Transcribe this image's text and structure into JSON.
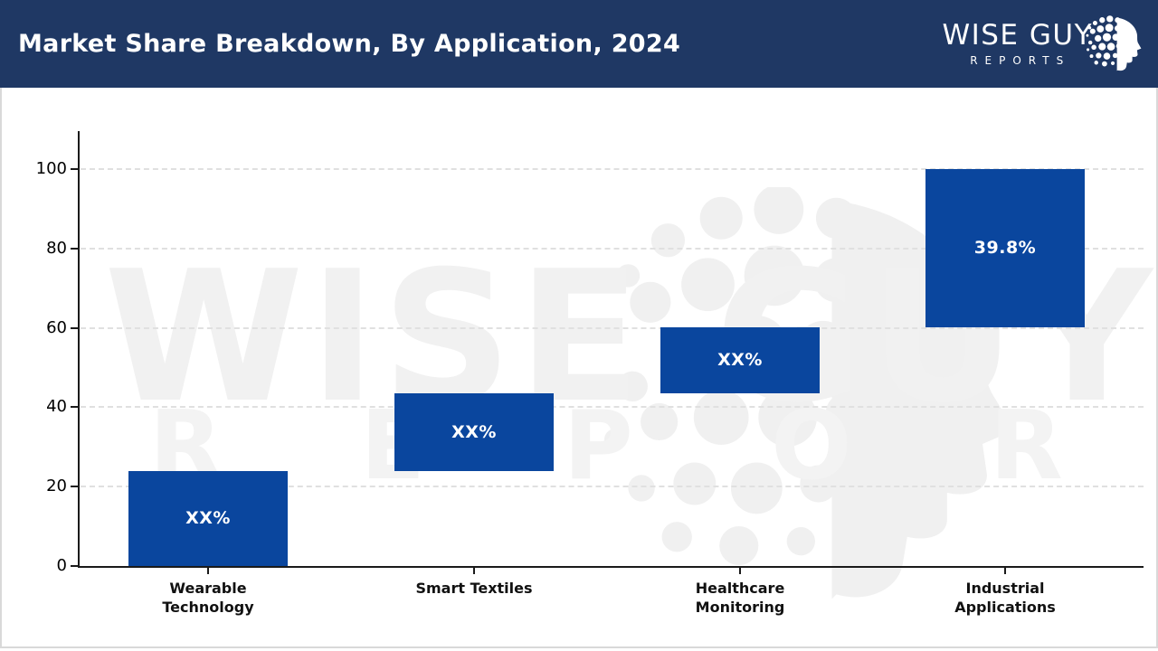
{
  "header": {
    "title": "Market Share Breakdown, By Application, 2024",
    "logo": {
      "line1": "WISE GUY",
      "line2": "REPORTS"
    }
  },
  "watermark": {
    "line1": "WISE GUY",
    "line2": "R E P O R T S"
  },
  "colors": {
    "header_bg": "#1f3864",
    "header_text": "#ffffff",
    "bar": "#0a469e",
    "bar_label": "#ffffff",
    "gridline": "#e0e0e0",
    "axis": "#1a1a1a",
    "tick_text": "#000000",
    "category_text": "#111111",
    "watermark": "#f1f1f1",
    "frame_border": "#d9d9d9"
  },
  "chart_data": {
    "type": "bar",
    "subtype": "waterfall",
    "title": "Market Share Breakdown, By Application, 2024",
    "categories": [
      "Wearable Technology",
      "Smart Textiles",
      "Healthcare Monitoring",
      "Industrial Applications"
    ],
    "categories_lines": [
      [
        "Wearable",
        "Technology"
      ],
      [
        "Smart Textiles"
      ],
      [
        "Healthcare",
        "Monitoring"
      ],
      [
        "Industrial",
        "Applications"
      ]
    ],
    "segments": [
      {
        "category": "Wearable Technology",
        "start": 0,
        "end": 24,
        "label": "XX%"
      },
      {
        "category": "Smart Textiles",
        "start": 24,
        "end": 43.5,
        "label": "XX%"
      },
      {
        "category": "Healthcare Monitoring",
        "start": 43.5,
        "end": 60.2,
        "label": "XX%"
      },
      {
        "category": "Industrial Applications",
        "start": 60.2,
        "end": 100,
        "label": "39.8%"
      }
    ],
    "values_estimated": [
      24,
      19.5,
      16.7,
      39.8
    ],
    "bar_labels": [
      "XX%",
      "XX%",
      "XX%",
      "39.8%"
    ],
    "yticks": [
      0,
      20,
      40,
      60,
      80,
      100
    ],
    "ylim": [
      0,
      100
    ],
    "xlabel": "",
    "ylabel": "",
    "grid": "horizontal-dashed",
    "legend_position": "none"
  }
}
